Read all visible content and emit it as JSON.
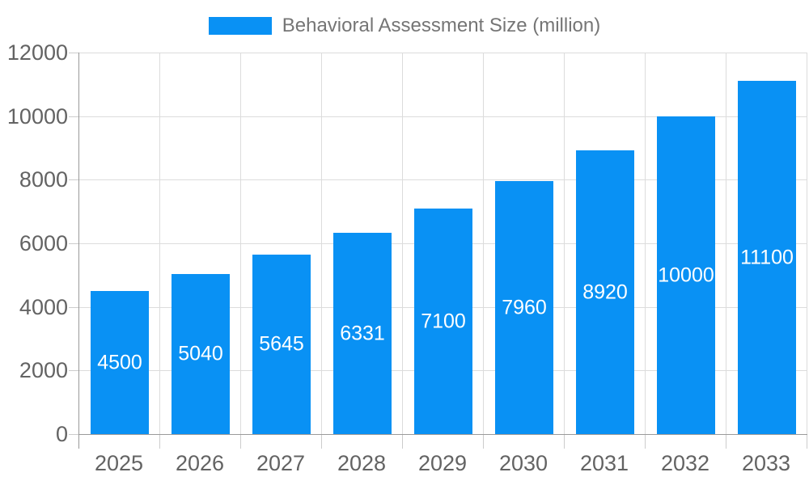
{
  "legend": {
    "label": "Behavioral Assessment Size (million)"
  },
  "chart_data": {
    "type": "bar",
    "title": "",
    "xlabel": "",
    "ylabel": "",
    "categories": [
      "2025",
      "2026",
      "2027",
      "2028",
      "2029",
      "2030",
      "2031",
      "2032",
      "2033"
    ],
    "series": [
      {
        "name": "Behavioral Assessment Size (million)",
        "values": [
          4500,
          5040,
          5645,
          6331,
          7100,
          7960,
          8920,
          10000,
          11100
        ]
      }
    ],
    "data_labels": [
      4500,
      5040,
      5645,
      6331,
      7100,
      7960,
      8920,
      10000,
      11100
    ],
    "ylim": [
      0,
      12000
    ],
    "yticks": [
      0,
      2000,
      4000,
      6000,
      8000,
      10000,
      12000
    ],
    "grid": true,
    "legend_position": "top",
    "bar_color": "#0991f4",
    "bar_label_color": "#ffffff",
    "axis_text_color": "#636363",
    "legend_text_color": "#757575",
    "grid_color": "#dcdcdc",
    "axis_line_color": "#9a9a9a"
  }
}
